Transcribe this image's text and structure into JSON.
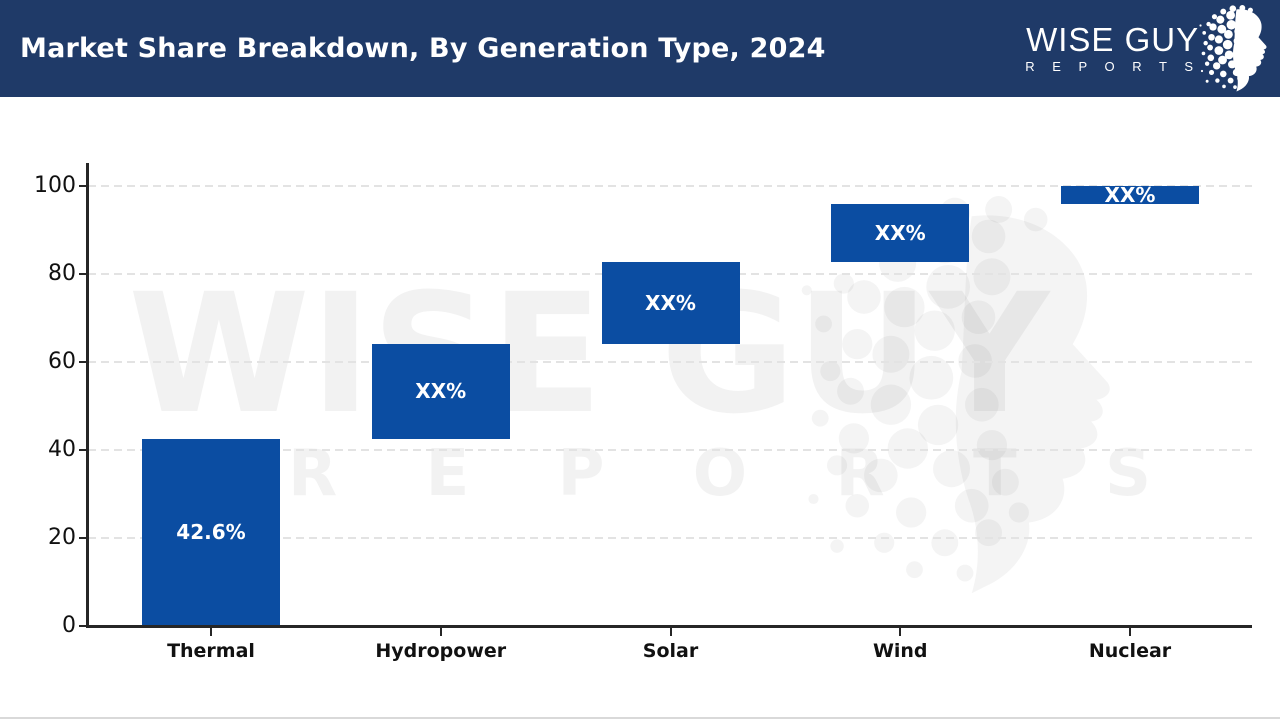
{
  "header": {
    "title": "Market Share Breakdown, By Generation Type, 2024",
    "background_color": "#1F3A68",
    "logo": {
      "line1": "WISE GUY",
      "line2": "R E P O R T S"
    }
  },
  "watermark": {
    "line1": "WISE GUY",
    "line2": "R E P O R T S"
  },
  "chart_data": {
    "type": "bar",
    "subtype": "waterfall",
    "title": "Market Share Breakdown, By Generation Type, 2024",
    "xlabel": "",
    "ylabel": "",
    "categories": [
      "Thermal",
      "Hydropower",
      "Solar",
      "Wind",
      "Nuclear"
    ],
    "segments": [
      {
        "category": "Thermal",
        "start": 0,
        "end": 42.6,
        "label": "42.6%"
      },
      {
        "category": "Hydropower",
        "start": 42.6,
        "end": 64.0,
        "label": "XX%"
      },
      {
        "category": "Solar",
        "start": 64.0,
        "end": 82.7,
        "label": "XX%"
      },
      {
        "category": "Wind",
        "start": 82.7,
        "end": 96.0,
        "label": "XX%"
      },
      {
        "category": "Nuclear",
        "start": 96.0,
        "end": 100.0,
        "label": "XX%"
      }
    ],
    "yticks": [
      0,
      20,
      40,
      60,
      80,
      100
    ],
    "ylim": [
      0,
      105
    ],
    "grid": "horizontal dashed",
    "legend": "none",
    "bar_color": "#0B4DA2",
    "bar_label_color": "#FFFFFF",
    "axis_color": "#262626"
  }
}
